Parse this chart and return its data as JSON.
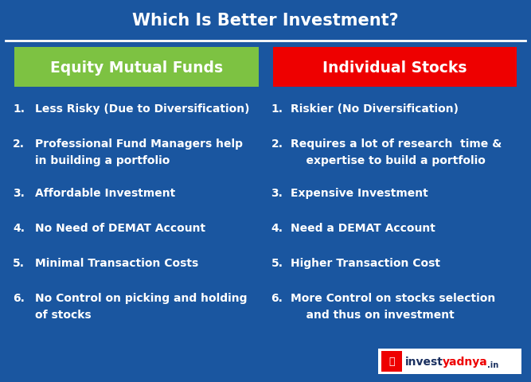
{
  "title": "Which Is Better Investment?",
  "title_color": "#ffffff",
  "bg_color": "#1a56a0",
  "header_line_color": "#ffffff",
  "left_header": "Equity Mutual Funds",
  "right_header": "Individual Stocks",
  "left_header_bg": "#7dc242",
  "right_header_bg": "#ee0000",
  "header_text_color": "#ffffff",
  "left_items": [
    "Less Risky (Due to Diversification)",
    "Professional Fund Managers help\nin building a portfolio",
    "Affordable Investment",
    "No Need of DEMAT Account",
    "Minimal Transaction Costs",
    "No Control on picking and holding\nof stocks"
  ],
  "right_items": [
    "Riskier (No Diversification)",
    "Requires a lot of research  time &\n    expertise to build a portfolio",
    "Expensive Investment",
    "Need a DEMAT Account",
    "Higher Transaction Cost",
    "More Control on stocks selection\n    and thus on investment"
  ],
  "item_text_color": "#ffffff",
  "watermark_bg": "#ffffff",
  "divider_color": "#5b8db8",
  "fig_width": 6.67,
  "fig_height": 4.81,
  "dpi": 100
}
